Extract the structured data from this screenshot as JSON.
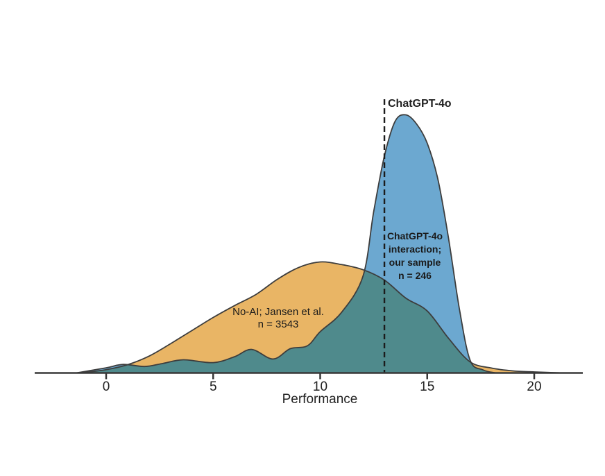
{
  "figure": {
    "background": "#ffffff",
    "labels": {
      "header": "ChatGPT-4o",
      "blue_lines": [
        "ChatGPT-4o",
        "interaction;",
        "our sample",
        "n = 246"
      ],
      "orange_lines": [
        "No-AI; Jansen et al.",
        "n = 3543"
      ]
    },
    "colors": {
      "noai_fill": "#E9B565",
      "ai_fill": "#6CA8D0",
      "overlap_fill": "#4F8A8C",
      "outline": "#3D3D3D",
      "axis": "#383838",
      "dashed_line": "#1B1B1B",
      "text": "#212121"
    }
  },
  "chart_data": {
    "type": "area",
    "subtype": "overlapping-kde-density",
    "title": "",
    "xlabel": "Performance",
    "ylabel": "",
    "x_ticks": [
      0,
      5,
      10,
      15,
      20
    ],
    "xlim": [
      -3.3,
      22.3
    ],
    "ylim": [
      0,
      1.07
    ],
    "y_units": "density (relative units, blue peak = 1.0)",
    "grid": false,
    "legend_position": "annotations-inside-plot",
    "dashed_line_x": 13,
    "dashed_line_label": "ChatGPT-4o",
    "series": [
      {
        "name": "No-AI; Jansen et al.",
        "n": 3543,
        "color": "#E9B565",
        "x": [
          -1.2,
          0,
          1,
          2,
          3,
          4,
          5,
          6,
          7,
          8,
          9,
          10,
          11,
          12,
          13,
          14,
          15,
          16,
          17,
          18,
          19,
          20,
          21.3
        ],
        "density": [
          0,
          0.013,
          0.032,
          0.065,
          0.113,
          0.164,
          0.215,
          0.261,
          0.304,
          0.363,
          0.409,
          0.43,
          0.42,
          0.4,
          0.36,
          0.29,
          0.24,
          0.134,
          0.043,
          0.019,
          0.008,
          0.004,
          0
        ]
      },
      {
        "name": "ChatGPT-4o interaction; our sample",
        "n": 246,
        "color": "#6CA8D0",
        "x": [
          -1.4,
          0,
          0.8,
          1.8,
          2.6,
          3.6,
          5,
          6,
          6.8,
          7.8,
          8.6,
          9.4,
          10,
          11,
          12,
          12.5,
          13,
          13.5,
          14,
          14.5,
          15,
          15.5,
          16,
          16.5,
          17,
          17.6,
          18.2
        ],
        "density": [
          0,
          0.02,
          0.033,
          0.025,
          0.036,
          0.051,
          0.04,
          0.063,
          0.091,
          0.054,
          0.094,
          0.105,
          0.16,
          0.235,
          0.375,
          0.625,
          0.84,
          0.975,
          1.0,
          0.965,
          0.89,
          0.75,
          0.52,
          0.25,
          0.05,
          0.012,
          0
        ]
      }
    ]
  }
}
